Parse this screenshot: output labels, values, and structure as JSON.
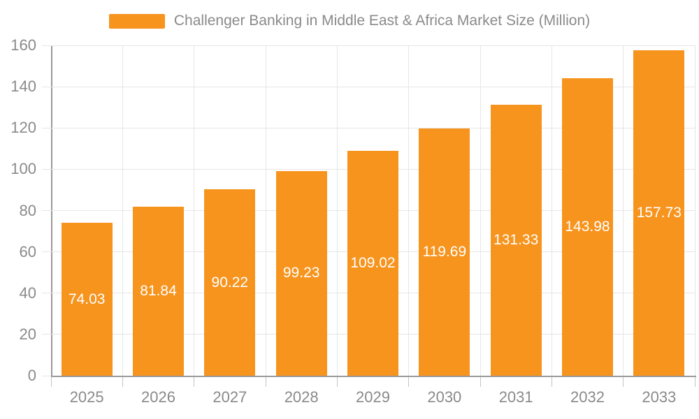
{
  "legend": {
    "label": "Challenger Banking in Middle East & Africa Market Size (Million)"
  },
  "colors": {
    "bar": "#f7941e",
    "grid": "#e6e6e6",
    "axis": "#999999",
    "tick": "#c4c4c4",
    "text": "#8a8a8a",
    "value_text": "#ffffff",
    "bg": "#ffffff"
  },
  "chart_data": {
    "type": "bar",
    "title": "Challenger Banking in Middle East & Africa Market Size (Million)",
    "categories": [
      "2025",
      "2026",
      "2027",
      "2028",
      "2029",
      "2030",
      "2031",
      "2032",
      "2033"
    ],
    "values": [
      74.03,
      81.84,
      90.22,
      99.23,
      109.02,
      119.69,
      131.33,
      143.98,
      157.73
    ],
    "value_labels": [
      "74.03",
      "81.84",
      "90.22",
      "99.23",
      "109.02",
      "119.69",
      "131.33",
      "143.98",
      "157.73"
    ],
    "xlabel": "",
    "ylabel": "",
    "ylim": [
      0,
      160
    ],
    "yticks": [
      0,
      20,
      40,
      60,
      80,
      100,
      120,
      140,
      160
    ],
    "grid": true,
    "legend_position": "top",
    "value_label_position": "inside-center",
    "bar_color": "#f7941e"
  }
}
